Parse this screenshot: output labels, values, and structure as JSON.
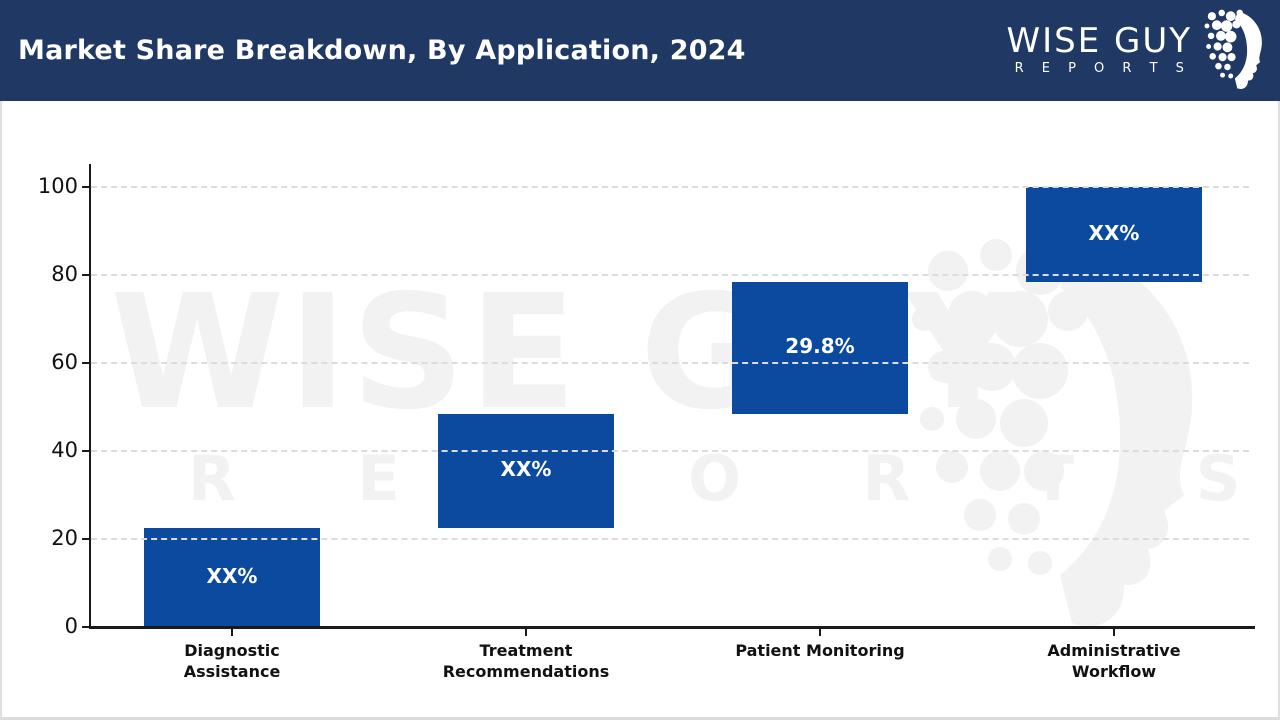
{
  "header": {
    "title": "Market Share Breakdown, By Application, 2024",
    "logo": {
      "line1": "WISE GUY",
      "line2": "R E P O R T S"
    }
  },
  "watermark": {
    "line1": "WISE GUY",
    "line2": "R E P O R T S"
  },
  "colors": {
    "header_background": "#1f3864",
    "bar_blue": "#0b4a9e",
    "gridline_gray": "#dcdcdc",
    "watermark_gray": "#f2f2f2",
    "axis_black": "#1a1a1a"
  },
  "chart_data": {
    "type": "bar",
    "subtype": "waterfall",
    "title": "Market Share Breakdown, By Application, 2024",
    "xlabel": "",
    "ylabel": "",
    "categories": [
      "Diagnostic Assistance",
      "Treatment Recommendations",
      "Patient Monitoring",
      "Administrative Workflow"
    ],
    "tick_labels": [
      "Diagnostic\nAssistance",
      "Treatment\nRecommendations",
      "Patient Monitoring",
      "Administrative\nWorkflow"
    ],
    "segments": [
      {
        "start": 0,
        "end": 22.4,
        "label": "XX%"
      },
      {
        "start": 22.4,
        "end": 48.5,
        "label": "XX%"
      },
      {
        "start": 48.5,
        "end": 78.3,
        "label": "29.8%"
      },
      {
        "start": 78.3,
        "end": 100.0,
        "label": "XX%"
      }
    ],
    "ylim": [
      0,
      105
    ],
    "yticks": [
      0,
      20,
      40,
      60,
      80,
      100
    ],
    "grid": "horizontal-dashed",
    "legend": "none",
    "bar_color": "#0b4a9e"
  }
}
